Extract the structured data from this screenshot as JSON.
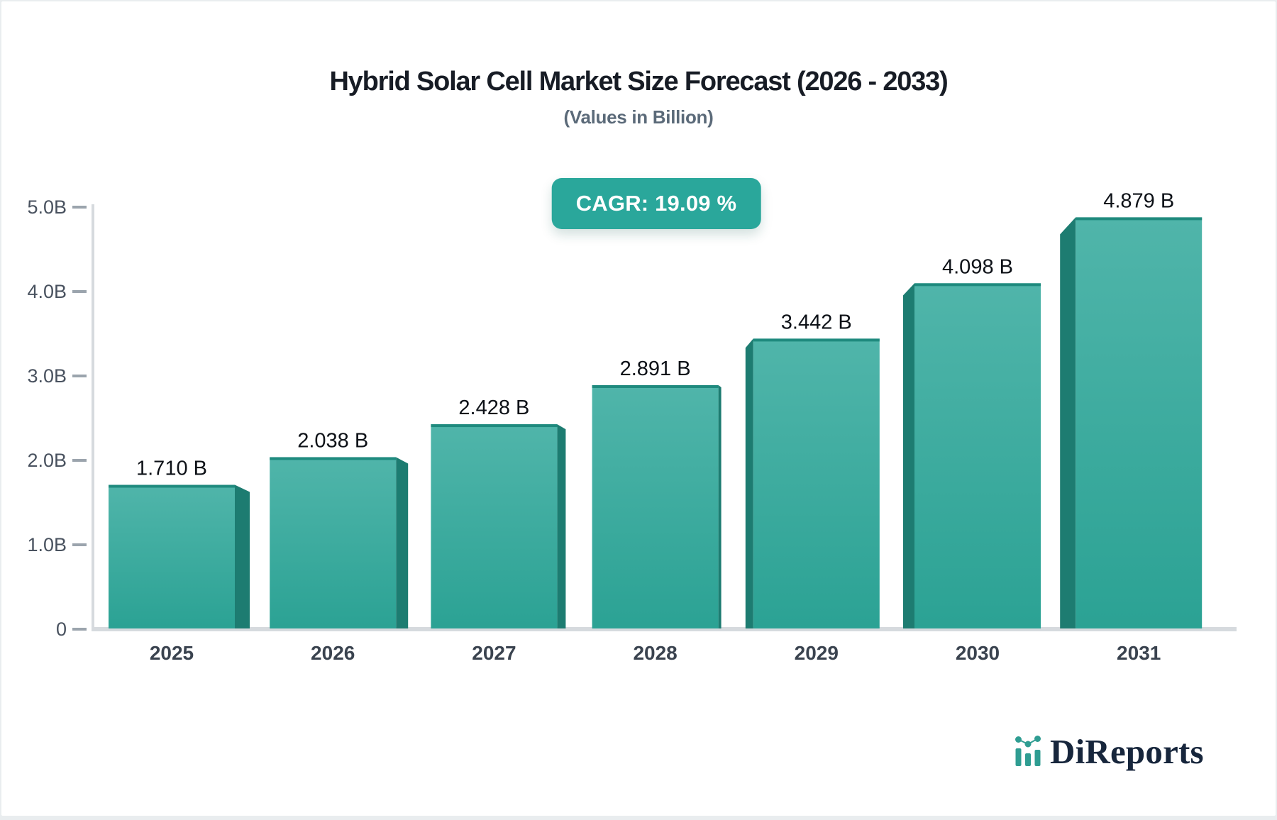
{
  "page": {
    "background": "#e9edef",
    "card_background": "#ffffff"
  },
  "header": {
    "title": "Hybrid Solar Cell Market Size Forecast (2026 - 2033)",
    "subtitle": "(Values in Billion)"
  },
  "badge": {
    "label": "CAGR: 19.09 %",
    "background": "#2aa79b",
    "text_color": "#ffffff"
  },
  "chart_data": {
    "type": "bar",
    "title": "Hybrid Solar Cell Market Size Forecast (2026 - 2033)",
    "subtitle": "(Values in Billion)",
    "annotation": "CAGR: 19.09 %",
    "categories": [
      "2025",
      "2026",
      "2027",
      "2028",
      "2029",
      "2030",
      "2031"
    ],
    "values": [
      1.71,
      2.038,
      2.428,
      2.891,
      3.442,
      4.098,
      4.879
    ],
    "value_labels": [
      "1.710 B",
      "2.038 B",
      "2.428 B",
      "2.891 B",
      "3.442 B",
      "4.098 B",
      "4.879 B"
    ],
    "xlabel": "",
    "ylabel": "",
    "ylim": [
      0,
      5
    ],
    "ytick_labels": [
      "0",
      "1.0B",
      "2.0B",
      "3.0B",
      "4.0B",
      "5.0B"
    ],
    "grid": false,
    "legend": "none",
    "bar_style": {
      "face_top": "#50b5aa",
      "face_bottom": "#2ba294",
      "top_edge": "#1f8a7e",
      "side_panel": "#1d7c71"
    },
    "axis_style": {
      "axis_line": "#d6dade",
      "tick_dash": "#9ba4ad",
      "ytick_text": "#49525f",
      "xtick_text": "#3a434f",
      "value_text": "#0d1117"
    }
  },
  "logo": {
    "icon": "bar-chart-trend-icon",
    "icon_color": "#2f9d92",
    "text": "DiReports",
    "text_color": "#17263c"
  }
}
